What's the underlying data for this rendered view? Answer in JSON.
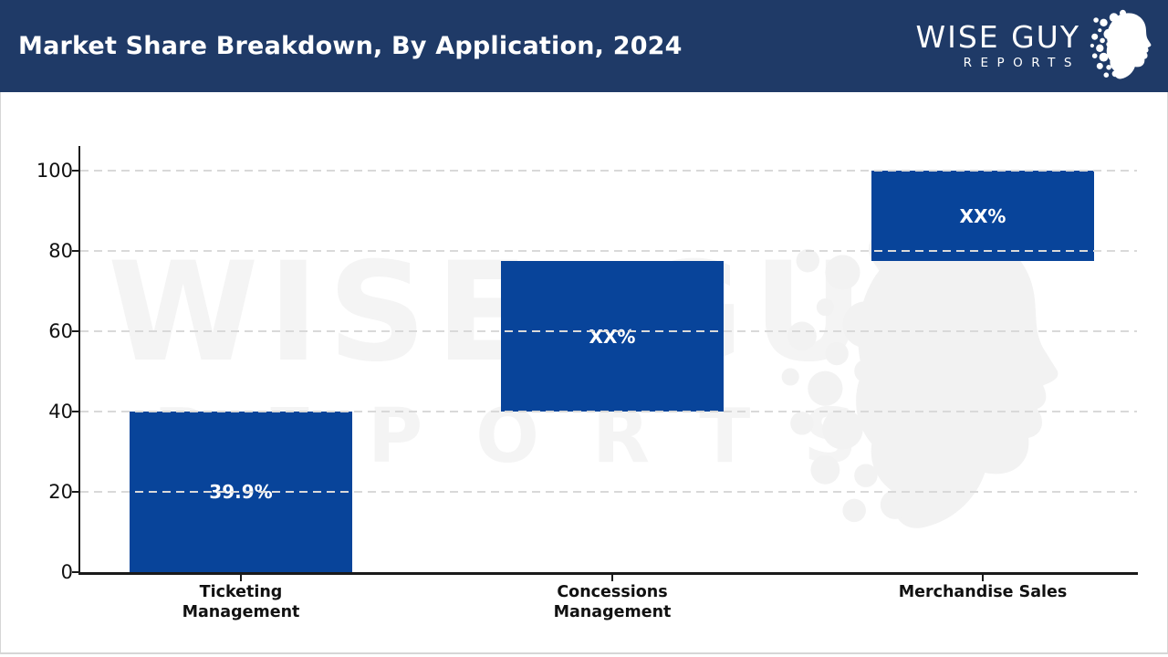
{
  "header": {
    "title": "Market Share Breakdown, By Application, 2024",
    "bg_color": "#1f3a67",
    "logo": {
      "line1": "WISE GUY",
      "line2": "REPORTS"
    }
  },
  "watermark": {
    "line1": "WISE GUY",
    "line2": "REPORTS"
  },
  "chart_data": {
    "type": "bar",
    "subtype": "waterfall",
    "title": "Market Share Breakdown, By Application, 2024",
    "categories": [
      {
        "name": "Ticketing Management",
        "lines": [
          "Ticketing",
          "Management"
        ]
      },
      {
        "name": "Concessions Management",
        "lines": [
          "Concessions",
          "Management"
        ]
      },
      {
        "name": "Merchandise Sales",
        "lines": [
          "Merchandise Sales"
        ]
      }
    ],
    "segments": [
      {
        "category": "Ticketing Management",
        "start": 0,
        "end": 39.9,
        "label": "39.9%"
      },
      {
        "category": "Concessions Management",
        "start": 39.9,
        "end": 77.5,
        "label": "XX%"
      },
      {
        "category": "Merchandise Sales",
        "start": 77.5,
        "end": 100,
        "label": "XX%"
      }
    ],
    "yticks": [
      0,
      20,
      40,
      60,
      80,
      100
    ],
    "ylim": [
      0,
      106
    ],
    "xlabel": "",
    "ylabel": "",
    "legend": "none",
    "grid": "horizontal dashed, drawn over bars",
    "bar_color": "#08449a",
    "grid_color": "#d9d9d9",
    "axis_color": "#1a1a1a",
    "label_color": "#ffffff"
  }
}
